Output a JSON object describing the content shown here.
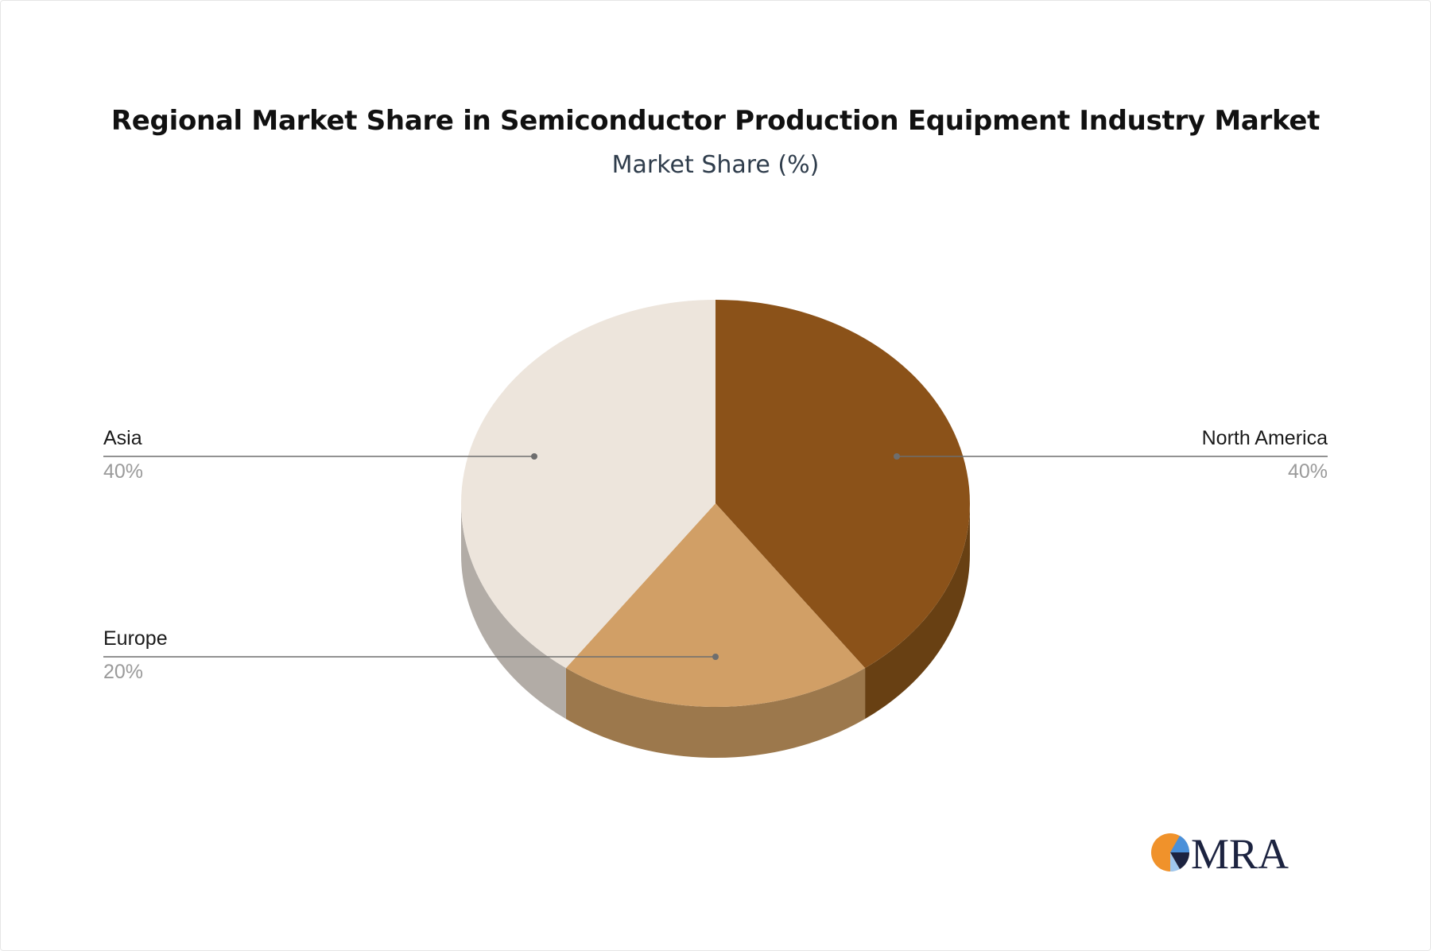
{
  "chart_data": {
    "type": "pie",
    "title": "Regional Market Share in Semiconductor Production Equipment Industry Market",
    "subtitle": "Market Share (%)",
    "style": "3d",
    "slices": [
      {
        "label": "North America",
        "value": 40,
        "display": "40%",
        "color": "#8b5219",
        "side_color": "#684013"
      },
      {
        "label": "Europe",
        "value": 20,
        "display": "20%",
        "color": "#d19f66",
        "side_color": "#9c784c"
      },
      {
        "label": "Asia",
        "value": 40,
        "display": "40%",
        "color": "#ede5dc",
        "side_color": "#b2aca6"
      }
    ]
  },
  "logo": {
    "text": "MRA",
    "text_color": "#1c2340",
    "accent_orange": "#f0922b",
    "accent_blue": "#4a90d9"
  }
}
